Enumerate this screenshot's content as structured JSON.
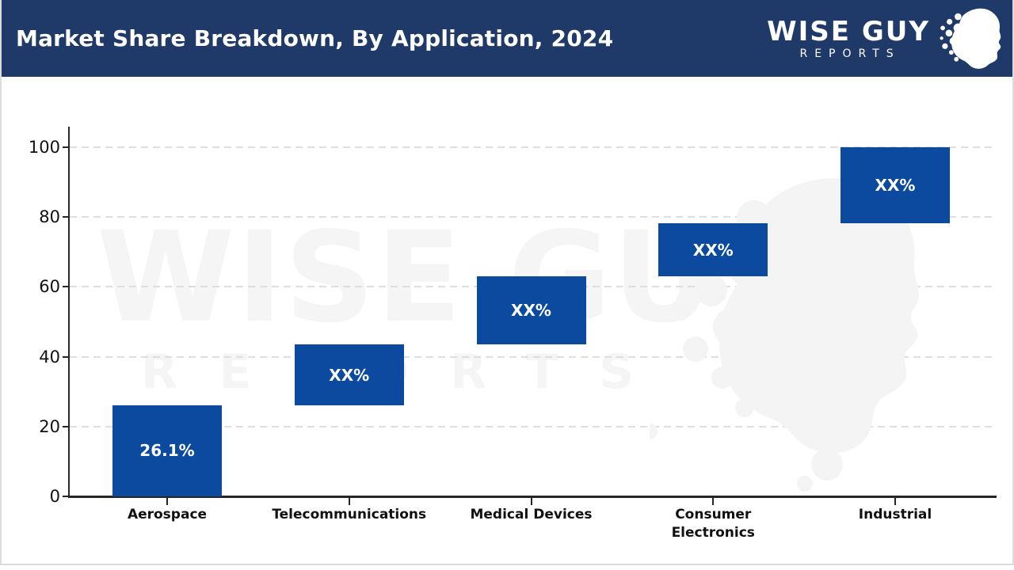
{
  "header": {
    "title": "Market Share Breakdown, By Application, 2024",
    "logo": {
      "wordmark": "WISE GUY",
      "subtext": "REPORTS"
    }
  },
  "watermark": {
    "line1": "WISE GUY",
    "line2": "REPORTS"
  },
  "colors": {
    "header_bg": "#1f3a68",
    "bar": "#0b4a9e",
    "bar_label": "#ffffff",
    "axis": "#262626",
    "gridline": "#dedede",
    "watermark": "#f5f5f5",
    "page_border": "#dcdcdc"
  },
  "chart_data": {
    "type": "bar",
    "variant": "waterfall",
    "title": "Market Share Breakdown, By Application, 2024",
    "categories": [
      "Aerospace",
      "Telecommunications",
      "Medical Devices",
      "Consumer Electronics",
      "Industrial"
    ],
    "series": [
      {
        "name": "Market share by application (%)",
        "segments": [
          {
            "category": "Aerospace",
            "start": 0,
            "end": 26.1,
            "label": "26.1%"
          },
          {
            "category": "Telecommunications",
            "start": 26.1,
            "end": 43.5,
            "label": "XX%"
          },
          {
            "category": "Medical Devices",
            "start": 43.5,
            "end": 63.0,
            "label": "XX%"
          },
          {
            "category": "Consumer Electronics",
            "start": 63.0,
            "end": 78.2,
            "label": "XX%"
          },
          {
            "category": "Industrial",
            "start": 78.2,
            "end": 100.0,
            "label": "XX%"
          }
        ]
      }
    ],
    "xlabel": "",
    "ylabel": "",
    "ylim": [
      0,
      107
    ],
    "yticks": [
      0,
      20,
      40,
      60,
      80,
      100
    ],
    "grid": "horizontal dashed",
    "legend": "none"
  }
}
